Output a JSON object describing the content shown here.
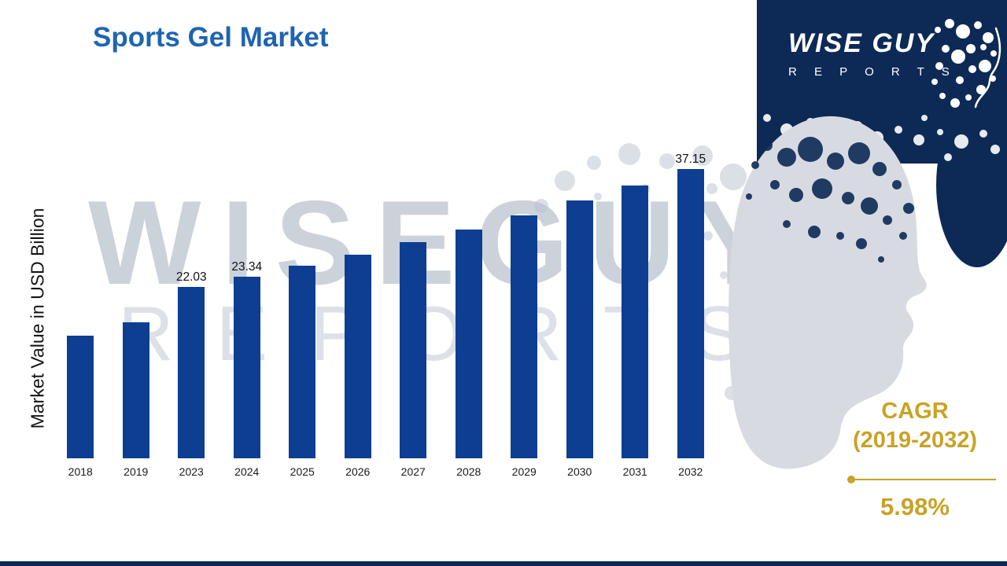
{
  "chart_data": {
    "type": "bar",
    "title": "Sports Gel Market",
    "xlabel": "",
    "ylabel": "Market Value in USD Billion",
    "categories": [
      "2018",
      "2019",
      "2023",
      "2024",
      "2025",
      "2026",
      "2027",
      "2028",
      "2029",
      "2030",
      "2031",
      "2032"
    ],
    "values": [
      15.8,
      17.5,
      22.03,
      23.34,
      24.7,
      26.2,
      27.8,
      29.4,
      31.2,
      33.1,
      35.1,
      37.15
    ],
    "bar_labels": [
      "",
      "",
      "22.03",
      "23.34",
      "",
      "",
      "",
      "",
      "",
      "",
      "",
      "37.15"
    ],
    "ylim": [
      0,
      40
    ],
    "grid": false,
    "legend": "none",
    "bar_color": "#0d3e92"
  },
  "watermark": {
    "line1": "WISEGUY",
    "line2": "REPORTS"
  },
  "logo": {
    "name": "WISE GUY",
    "sub": "R E P O R T S"
  },
  "cagr": {
    "line1": "CAGR",
    "line2": "(2019-2032)",
    "value": "5.98%"
  },
  "colors": {
    "title_blue": "#1e65b0",
    "bar_navy": "#0d3e92",
    "panel_navy": "#0d2a56",
    "gold": "#c9a227",
    "watermark_gray": "#ccd2da",
    "watermark_gray_light": "#dde1e7",
    "head_gray": "#d7dbe1",
    "dot_gray": "#b9c2d0"
  }
}
